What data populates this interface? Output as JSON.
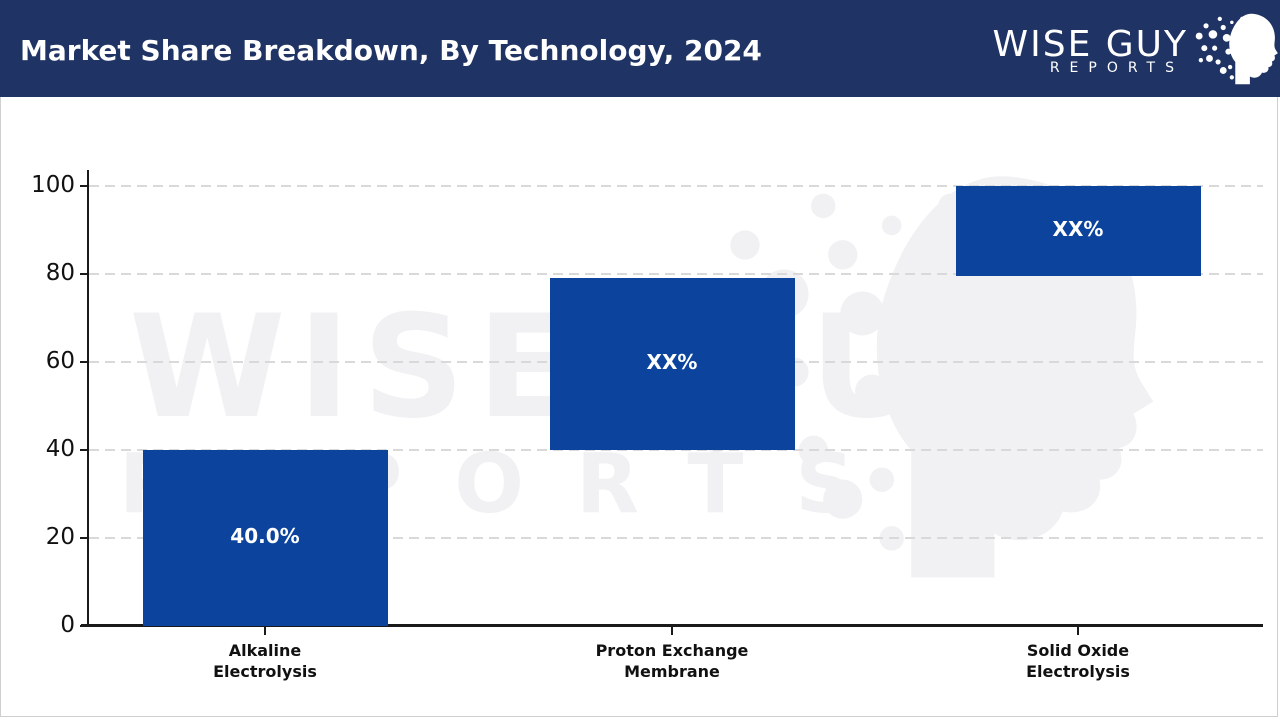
{
  "header": {
    "title": "Market Share Breakdown, By Technology, 2024",
    "bg_color": "#1f3464",
    "logo": {
      "line1": "WISE GUY",
      "line2": "REPORTS"
    }
  },
  "watermark": {
    "line1": "WISE GUY",
    "line2": "REPORTS"
  },
  "chart_data": {
    "type": "bar",
    "style": "waterfall-segments",
    "title": "Market Share Breakdown, By Technology, 2024",
    "categories": [
      {
        "line1": "Alkaline",
        "line2": "Electrolysis"
      },
      {
        "line1": "Proton Exchange",
        "line2": "Membrane"
      },
      {
        "line1": "Solid Oxide",
        "line2": "Electrolysis"
      }
    ],
    "bars": [
      {
        "base": 0,
        "top": 40,
        "value_label": "40.0%"
      },
      {
        "base": 40,
        "top": 79,
        "value_label": "XX%"
      },
      {
        "base": 79.5,
        "top": 100,
        "value_label": "XX%"
      }
    ],
    "yticks": [
      0,
      20,
      40,
      60,
      80,
      100
    ],
    "ylim": [
      0,
      103.6
    ],
    "bar_color": "#0c439c",
    "grid": {
      "show": true,
      "style": "dashed",
      "color": "#d9d9d9"
    },
    "axis_color": "#1a1a1a",
    "legend": "none"
  }
}
